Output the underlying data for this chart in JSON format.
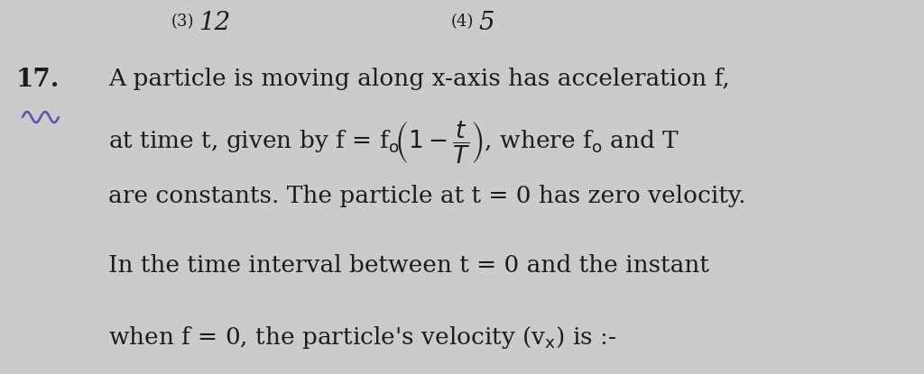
{
  "background_color": "#cccbcb",
  "top_left_label": "(3)",
  "top_left_number": "12",
  "top_mid_label": "(4)",
  "top_mid_number": "5",
  "question_number": "17.",
  "line1": "A particle is moving along x-axis has acceleration f,",
  "line3": "are constants. The particle at t = 0 has zero velocity.",
  "line4": "In the time interval between t = 0 and the instant",
  "line5": "when f = 0, the particle’s velocity (v",
  "line5_sub": "x",
  "line5_end": ") is :-",
  "main_fontsize": 19,
  "sub_fontsize": 13,
  "small_fontsize": 13,
  "number_fontsize": 20,
  "text_color": "#1c1c1c",
  "squiggle_color": "#5555aa",
  "q_num_fontsize": 20
}
